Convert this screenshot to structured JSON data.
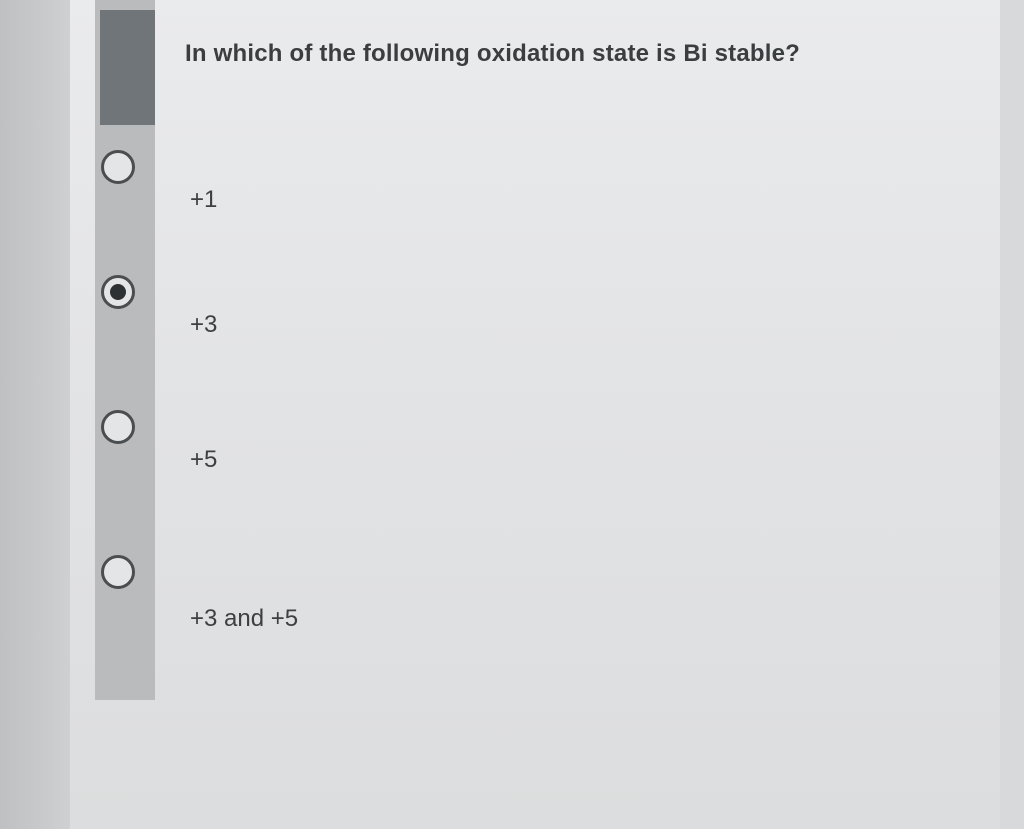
{
  "colors": {
    "page_bg": "#e2e3e5",
    "sidebar_bg": "#b9bbbd",
    "icon_bg": "#6f7578",
    "text": "#3b3e40",
    "radio_border": "#4a4e50",
    "radio_fill": "#2e3133"
  },
  "typography": {
    "question_fontsize_pt": 18,
    "option_fontsize_pt": 18,
    "font_family": "Arial"
  },
  "question": {
    "text": "In which of the following oxidation state is Bi stable?"
  },
  "options": {
    "a": {
      "label": "+1",
      "selected": false
    },
    "b": {
      "label": "+3",
      "selected": true
    },
    "c": {
      "label": "+5",
      "selected": false
    },
    "d": {
      "label": "+3 and +5",
      "selected": false
    }
  }
}
